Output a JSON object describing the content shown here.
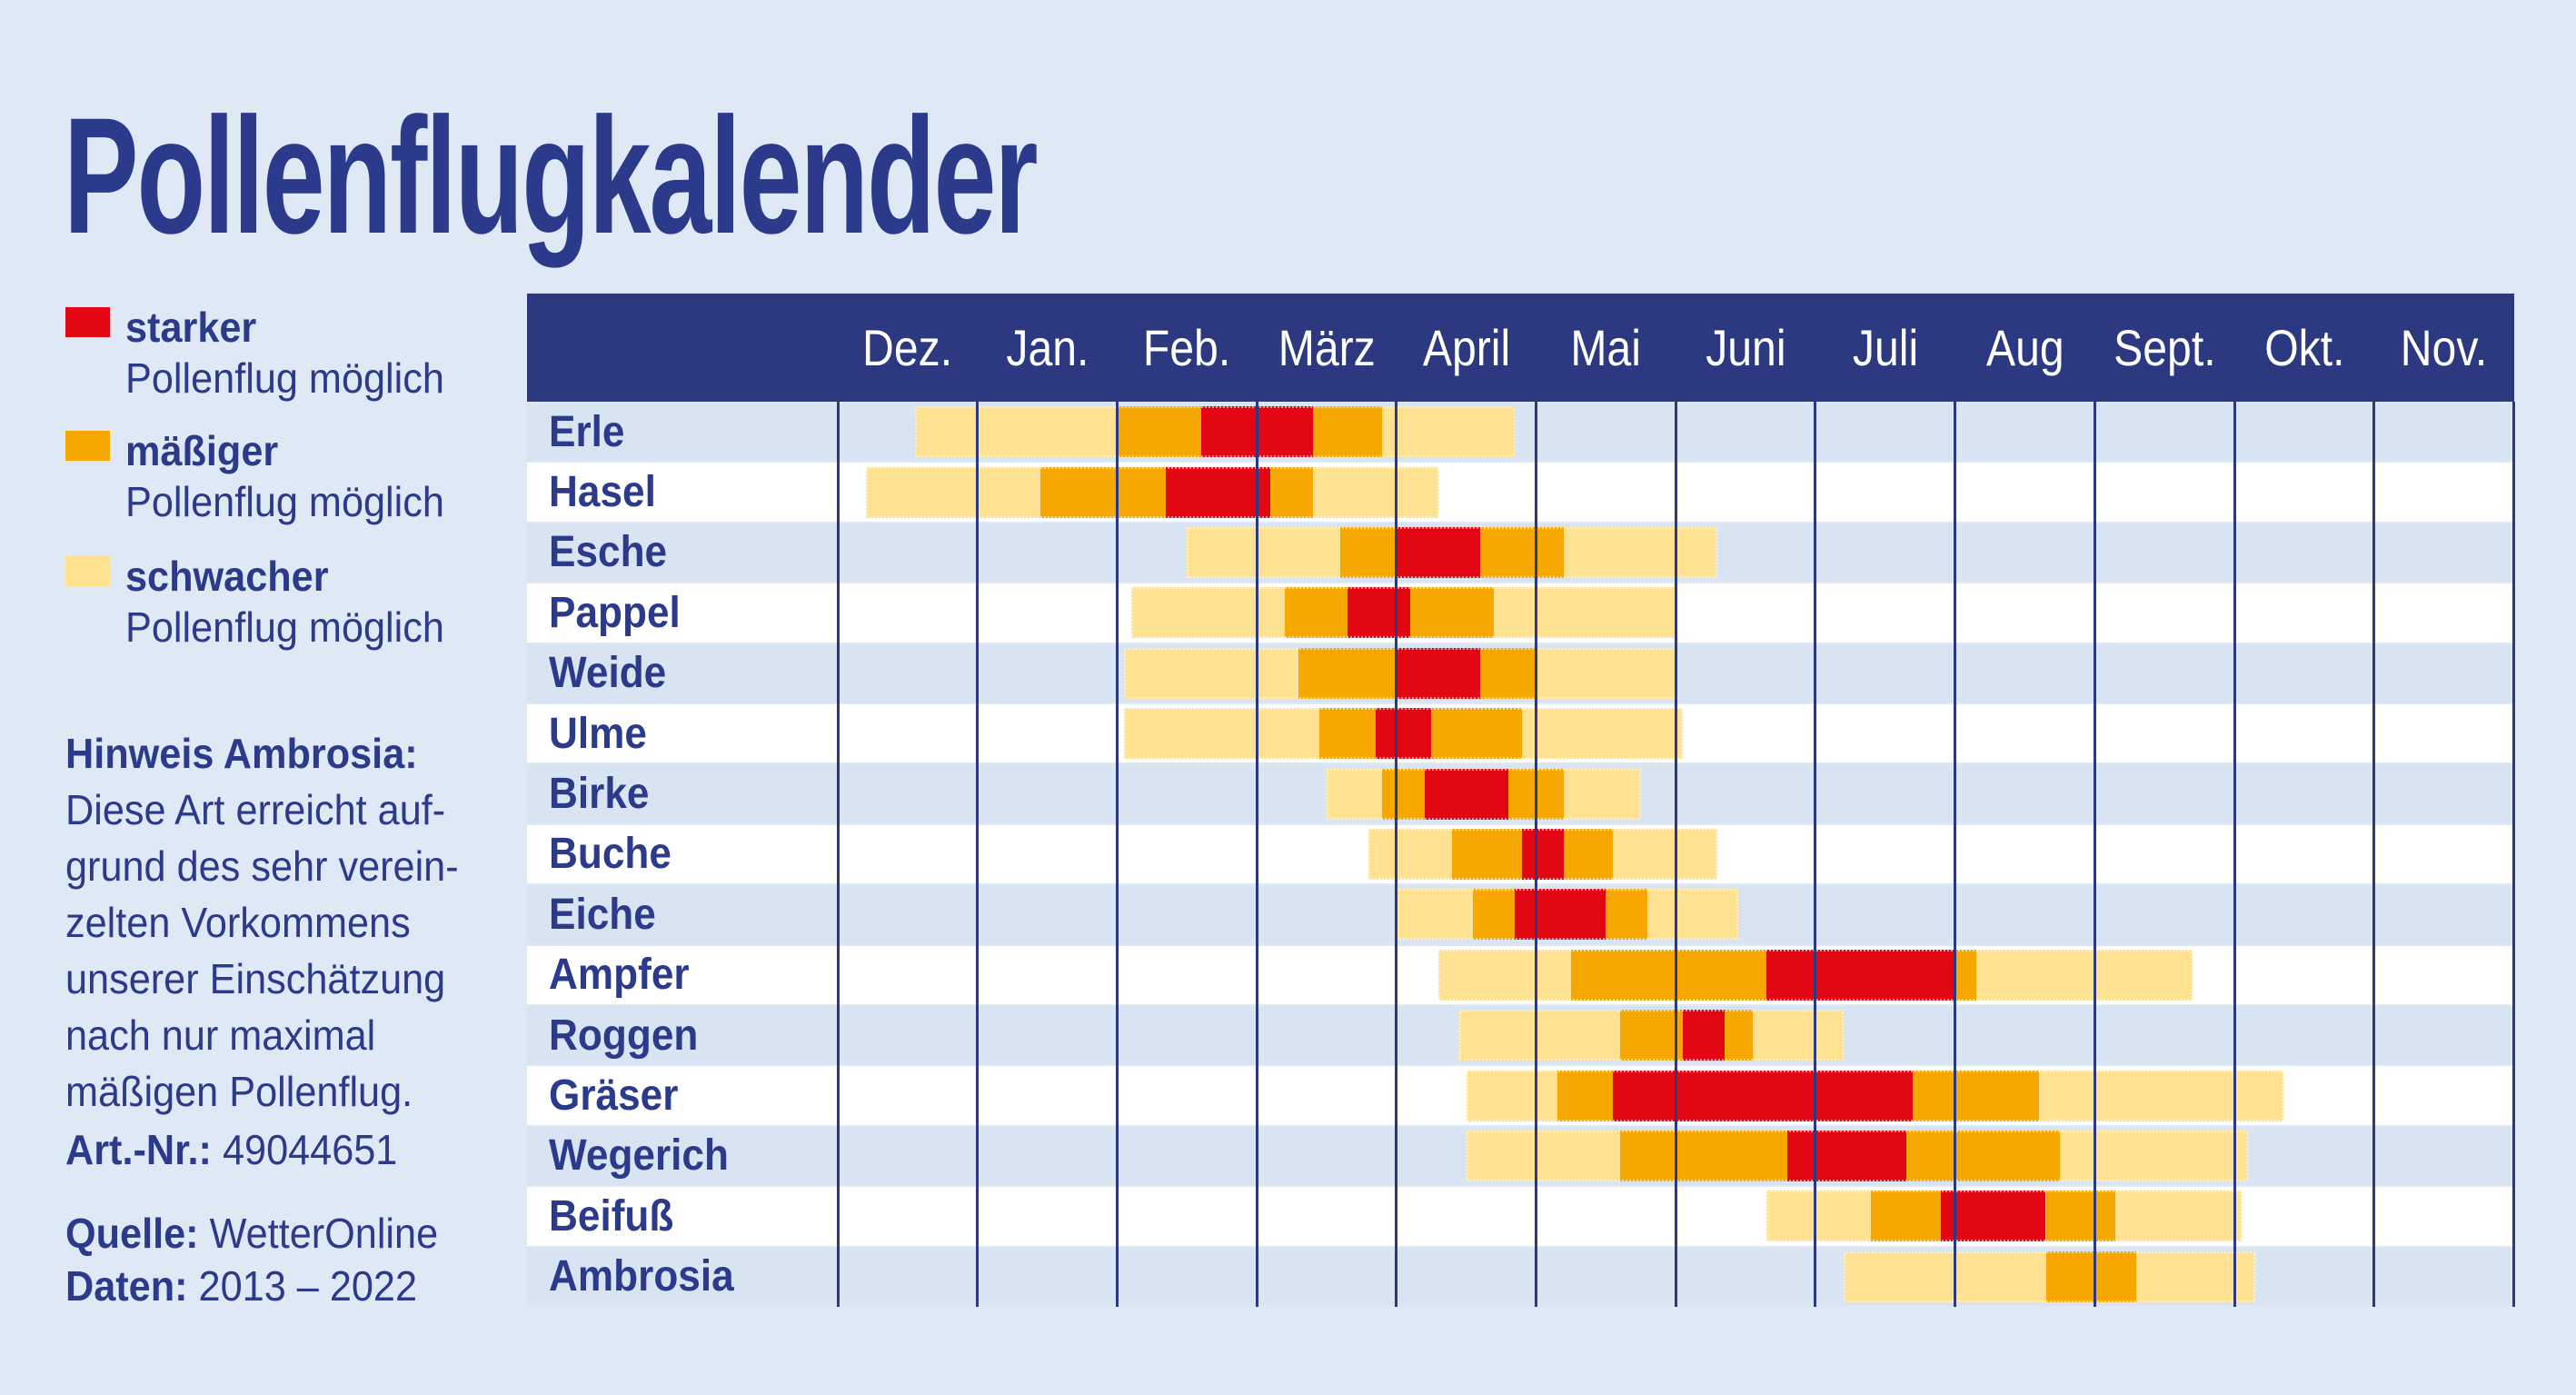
{
  "title": "Pollenflugkalender",
  "colors": {
    "page_background": "#dfe9f6",
    "header_blue": "#2c3880",
    "text_blue": "#2b3a8a",
    "row_band_blue": "#d8e4f2",
    "row_band_white": "#ffffff",
    "stark_red": "#e30613",
    "maessig_orange": "#f6a800",
    "schwach_yellow": "#ffe192"
  },
  "legend": [
    {
      "level": "stark",
      "label": "starker",
      "sublabel": "Pollenflug möglich",
      "color": "#e30613"
    },
    {
      "level": "maessig",
      "label": "mäßiger",
      "sublabel": "Pollenflug möglich",
      "color": "#f6a800"
    },
    {
      "level": "schwach",
      "label": "schwacher",
      "sublabel": "Pollenflug möglich",
      "color": "#ffe192"
    }
  ],
  "note": {
    "heading": "Hinweis Ambrosia:",
    "lines": [
      "Diese Art erreicht auf-",
      "grund des sehr verein-",
      "zelten Vorkommens",
      "unserer Einschätzung",
      "nach nur maximal",
      "mäßigen Pollenflug."
    ]
  },
  "meta": {
    "art_label": "Art.-Nr.:",
    "art_value": "49044651",
    "quelle_label": "Quelle:",
    "quelle_value": "WetterOnline",
    "daten_label": "Daten:",
    "daten_value": "2013 – 2022"
  },
  "chart_data": {
    "type": "gantt",
    "description": "Pollen flight calendar; per species colored intensity bands. Positions are in months measured from 1 December (0 = start of Dez., 1.0 = one month, 12 = end of Nov.).",
    "months": [
      "Dez.",
      "Jan.",
      "Feb.",
      "März",
      "April",
      "Mai",
      "Juni",
      "Juli",
      "Aug",
      "Sept.",
      "Okt.",
      "Nov."
    ],
    "levels": {
      "schwach": "schwacher Pollenflug",
      "maessig": "mäßiger Pollenflug",
      "stark": "starker Pollenflug"
    },
    "rows": [
      {
        "name": "Erle",
        "segments": [
          {
            "l": "schwach",
            "s": 0.55,
            "e": 2.0
          },
          {
            "l": "maessig",
            "s": 2.0,
            "e": 2.6
          },
          {
            "l": "stark",
            "s": 2.6,
            "e": 3.4
          },
          {
            "l": "maessig",
            "s": 3.4,
            "e": 3.9
          },
          {
            "l": "schwach",
            "s": 3.9,
            "e": 4.85
          }
        ]
      },
      {
        "name": "Hasel",
        "segments": [
          {
            "l": "schwach",
            "s": 0.2,
            "e": 1.45
          },
          {
            "l": "maessig",
            "s": 1.45,
            "e": 2.35
          },
          {
            "l": "stark",
            "s": 2.35,
            "e": 3.1
          },
          {
            "l": "maessig",
            "s": 3.1,
            "e": 3.4
          },
          {
            "l": "schwach",
            "s": 3.4,
            "e": 4.3
          }
        ]
      },
      {
        "name": "Esche",
        "segments": [
          {
            "l": "schwach",
            "s": 2.5,
            "e": 3.6
          },
          {
            "l": "maessig",
            "s": 3.6,
            "e": 4.0
          },
          {
            "l": "stark",
            "s": 4.0,
            "e": 4.6
          },
          {
            "l": "maessig",
            "s": 4.6,
            "e": 5.2
          },
          {
            "l": "schwach",
            "s": 5.2,
            "e": 6.3
          }
        ]
      },
      {
        "name": "Pappel",
        "segments": [
          {
            "l": "schwach",
            "s": 2.1,
            "e": 3.2
          },
          {
            "l": "maessig",
            "s": 3.2,
            "e": 3.65
          },
          {
            "l": "stark",
            "s": 3.65,
            "e": 4.1
          },
          {
            "l": "maessig",
            "s": 4.1,
            "e": 4.7
          },
          {
            "l": "schwach",
            "s": 4.7,
            "e": 6.0
          }
        ]
      },
      {
        "name": "Weide",
        "segments": [
          {
            "l": "schwach",
            "s": 2.05,
            "e": 3.3
          },
          {
            "l": "maessig",
            "s": 3.3,
            "e": 4.0
          },
          {
            "l": "stark",
            "s": 4.0,
            "e": 4.6
          },
          {
            "l": "maessig",
            "s": 4.6,
            "e": 5.0
          },
          {
            "l": "schwach",
            "s": 5.0,
            "e": 6.0
          }
        ]
      },
      {
        "name": "Ulme",
        "segments": [
          {
            "l": "schwach",
            "s": 2.05,
            "e": 3.45
          },
          {
            "l": "maessig",
            "s": 3.45,
            "e": 3.85
          },
          {
            "l": "stark",
            "s": 3.85,
            "e": 4.25
          },
          {
            "l": "maessig",
            "s": 4.25,
            "e": 4.9
          },
          {
            "l": "schwach",
            "s": 4.9,
            "e": 6.05
          }
        ]
      },
      {
        "name": "Birke",
        "segments": [
          {
            "l": "schwach",
            "s": 3.5,
            "e": 3.9
          },
          {
            "l": "maessig",
            "s": 3.9,
            "e": 4.2
          },
          {
            "l": "stark",
            "s": 4.2,
            "e": 4.8
          },
          {
            "l": "maessig",
            "s": 4.8,
            "e": 5.2
          },
          {
            "l": "schwach",
            "s": 5.2,
            "e": 5.75
          }
        ]
      },
      {
        "name": "Buche",
        "segments": [
          {
            "l": "schwach",
            "s": 3.8,
            "e": 4.4
          },
          {
            "l": "maessig",
            "s": 4.4,
            "e": 4.9
          },
          {
            "l": "stark",
            "s": 4.9,
            "e": 5.2
          },
          {
            "l": "maessig",
            "s": 5.2,
            "e": 5.55
          },
          {
            "l": "schwach",
            "s": 5.55,
            "e": 6.3
          }
        ]
      },
      {
        "name": "Eiche",
        "segments": [
          {
            "l": "schwach",
            "s": 4.0,
            "e": 4.55
          },
          {
            "l": "maessig",
            "s": 4.55,
            "e": 4.85
          },
          {
            "l": "stark",
            "s": 4.85,
            "e": 5.5
          },
          {
            "l": "maessig",
            "s": 5.5,
            "e": 5.8
          },
          {
            "l": "schwach",
            "s": 5.8,
            "e": 6.45
          }
        ]
      },
      {
        "name": "Ampfer",
        "segments": [
          {
            "l": "schwach",
            "s": 4.3,
            "e": 5.25
          },
          {
            "l": "maessig",
            "s": 5.25,
            "e": 6.65
          },
          {
            "l": "stark",
            "s": 6.65,
            "e": 8.0
          },
          {
            "l": "maessig",
            "s": 8.0,
            "e": 8.15
          },
          {
            "l": "schwach",
            "s": 8.15,
            "e": 9.7
          }
        ]
      },
      {
        "name": "Roggen",
        "segments": [
          {
            "l": "schwach",
            "s": 4.45,
            "e": 5.6
          },
          {
            "l": "maessig",
            "s": 5.6,
            "e": 6.05
          },
          {
            "l": "stark",
            "s": 6.05,
            "e": 6.35
          },
          {
            "l": "maessig",
            "s": 6.35,
            "e": 6.55
          },
          {
            "l": "schwach",
            "s": 6.55,
            "e": 7.2
          }
        ]
      },
      {
        "name": "Gräser",
        "segments": [
          {
            "l": "schwach",
            "s": 4.5,
            "e": 5.15
          },
          {
            "l": "maessig",
            "s": 5.15,
            "e": 5.55
          },
          {
            "l": "stark",
            "s": 5.55,
            "e": 7.7
          },
          {
            "l": "maessig",
            "s": 7.7,
            "e": 8.6
          },
          {
            "l": "schwach",
            "s": 8.6,
            "e": 10.35
          }
        ]
      },
      {
        "name": "Wegerich",
        "segments": [
          {
            "l": "schwach",
            "s": 4.5,
            "e": 5.6
          },
          {
            "l": "maessig",
            "s": 5.6,
            "e": 6.8
          },
          {
            "l": "stark",
            "s": 6.8,
            "e": 7.65
          },
          {
            "l": "maessig",
            "s": 7.65,
            "e": 8.75
          },
          {
            "l": "schwach",
            "s": 8.75,
            "e": 10.1
          }
        ]
      },
      {
        "name": "Beifuß",
        "segments": [
          {
            "l": "schwach",
            "s": 6.65,
            "e": 7.4
          },
          {
            "l": "maessig",
            "s": 7.4,
            "e": 7.9
          },
          {
            "l": "stark",
            "s": 7.9,
            "e": 8.65
          },
          {
            "l": "maessig",
            "s": 8.65,
            "e": 9.15
          },
          {
            "l": "schwach",
            "s": 9.15,
            "e": 10.05
          }
        ]
      },
      {
        "name": "Ambrosia",
        "segments": [
          {
            "l": "schwach",
            "s": 7.2,
            "e": 8.65
          },
          {
            "l": "maessig",
            "s": 8.65,
            "e": 9.3
          },
          {
            "l": "schwach",
            "s": 9.3,
            "e": 10.15
          }
        ]
      }
    ]
  }
}
